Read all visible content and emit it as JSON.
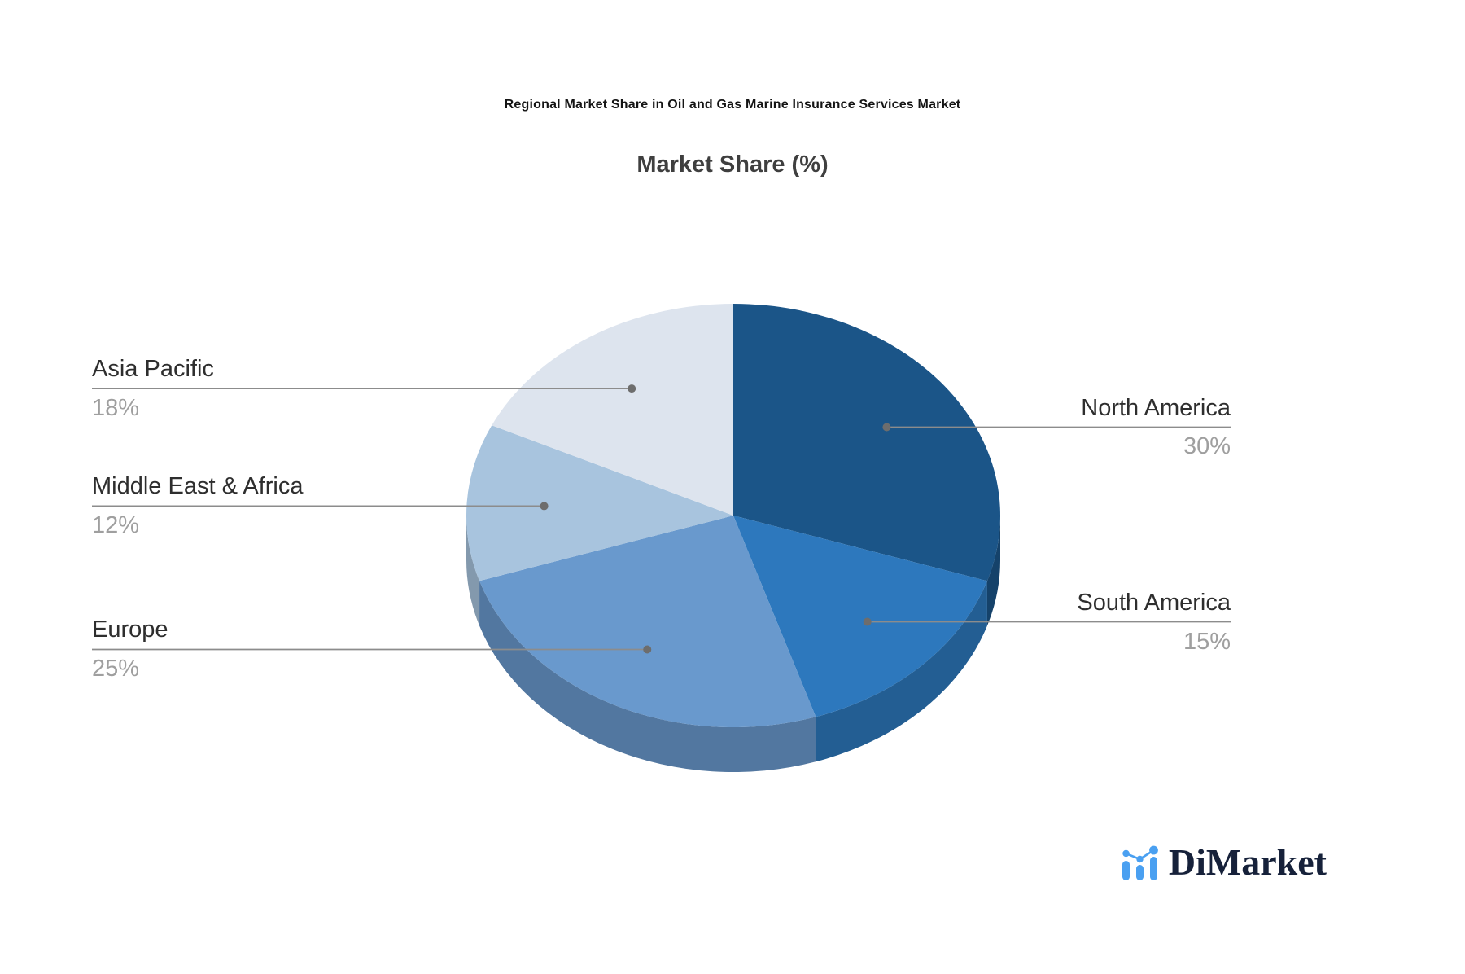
{
  "header": {
    "title": "Regional Market Share in Oil and Gas Marine Insurance Services Market",
    "subtitle": "Market Share (%)"
  },
  "chart_data": {
    "type": "pie",
    "title": "Regional Market Share in Oil and Gas Marine Insurance Services Market",
    "series_label": "Market Share (%)",
    "unit": "%",
    "categories": [
      "North America",
      "South America",
      "Europe",
      "Middle East & Africa",
      "Asia Pacific"
    ],
    "values": [
      30,
      15,
      25,
      12,
      18
    ],
    "value_labels": [
      "30%",
      "15%",
      "25%",
      "12%",
      "18%"
    ],
    "colors": [
      "#1b5588",
      "#2d78bd",
      "#6999cd",
      "#a8c4de",
      "#dde4ee"
    ],
    "label_side": [
      "right",
      "right",
      "left",
      "left",
      "left"
    ],
    "style": "3d-pie",
    "start_angle": "top",
    "clockwise": true,
    "legend_position": "none"
  },
  "logo": {
    "text": "DiMarket",
    "icon": "bar-chart-logo-icon",
    "bar_color": "#4aa0f1",
    "text_color": "#16213a"
  }
}
